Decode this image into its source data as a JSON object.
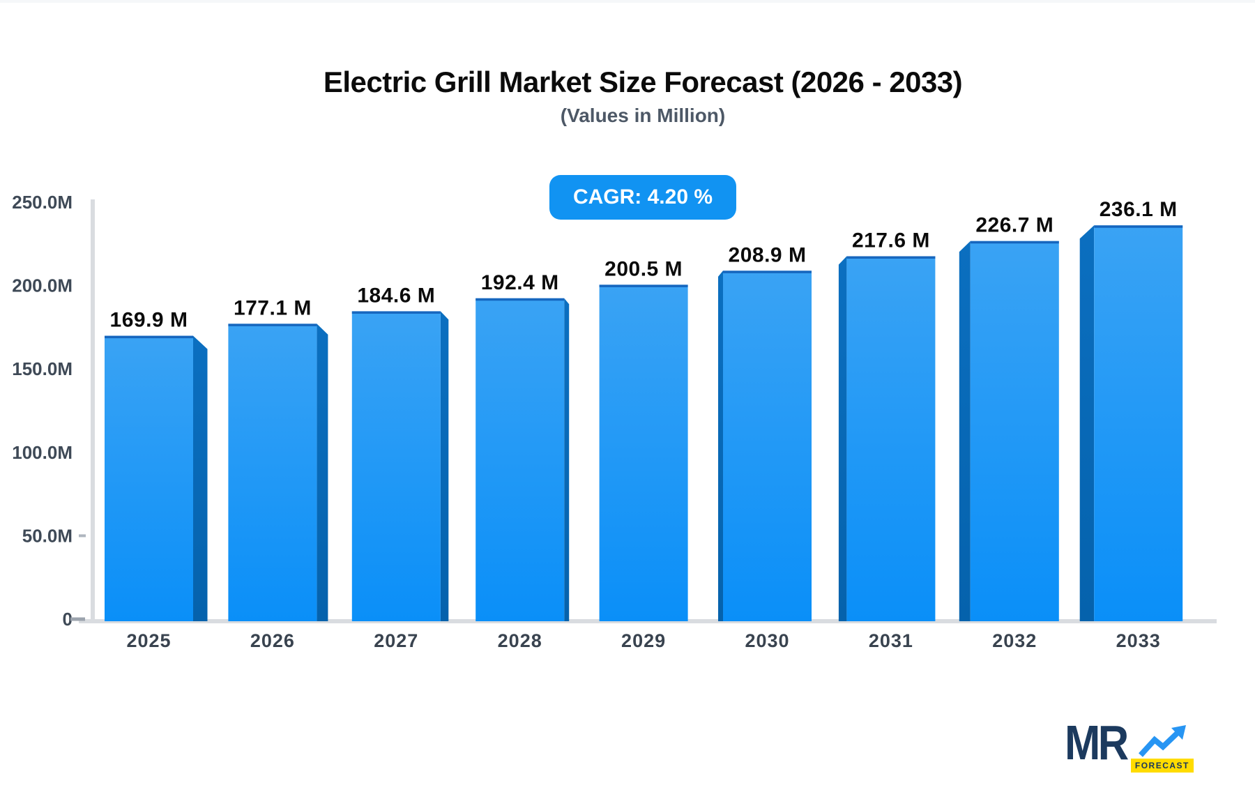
{
  "page": {
    "title": "Electric Grill Market Size Forecast (2026 - 2033)",
    "subtitle": "(Values in Million)",
    "cagr_badge": "CAGR: 4.20 %"
  },
  "chart_data": {
    "type": "bar",
    "title": "Electric Grill Market Size Forecast (2026 - 2033)",
    "subtitle": "(Values in Million)",
    "annotation": "CAGR: 4.20 %",
    "categories": [
      "2025",
      "2026",
      "2027",
      "2028",
      "2029",
      "2030",
      "2031",
      "2032",
      "2033"
    ],
    "values": [
      169.9,
      177.1,
      184.6,
      192.4,
      200.5,
      208.9,
      217.6,
      226.7,
      236.1
    ],
    "value_labels": [
      "169.9 M",
      "177.1 M",
      "184.6 M",
      "192.4 M",
      "200.5 M",
      "208.9 M",
      "217.6 M",
      "226.7 M",
      "236.1 M"
    ],
    "unit": "Million",
    "ylim": [
      0,
      250
    ],
    "y_ticks": [
      {
        "label": "250.0M",
        "dash": "none"
      },
      {
        "label": "200.0M",
        "dash": "none"
      },
      {
        "label": "150.0M",
        "dash": "none"
      },
      {
        "label": "100.0M",
        "dash": "none"
      },
      {
        "label": "50.0M",
        "dash": "small"
      },
      {
        "label": "0",
        "dash": "large"
      }
    ],
    "grid": false,
    "legend": false,
    "style_3d": true,
    "colors": {
      "bar_face_top": "#3AA3F4",
      "bar_face_bottom": "#0A8FF8",
      "bar_side_top": "#0B6FC0",
      "bar_side_bottom": "#0562AC",
      "bar_top_edge": "#135FB8",
      "axis_line": "#D9DCE0",
      "tick_mark": "#9CA3AD",
      "badge_blue": "#1193F2"
    }
  },
  "logo": {
    "mr": "MR",
    "forecast": "FORECAST",
    "arrow_icon": "trend-up-arrow",
    "colors": {
      "navy": "#1C3A5E",
      "yellow": "#FFDC00",
      "blue": "#2795F3"
    }
  }
}
